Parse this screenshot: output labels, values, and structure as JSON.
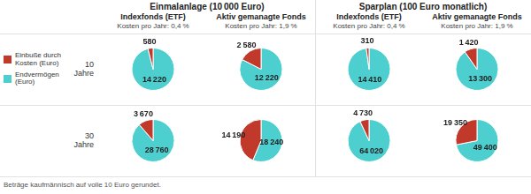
{
  "annotations": [
    "Einmalanlage (10 000 Euro)",
    "Sparplan (100 Euro monatlich)",
    "10\nJahre",
    "30\nJahre",
    "Beträge kaufmännisch auf volle 10 Euro gerundet."
  ],
  "chart_data": [
    {
      "type": "pie",
      "title": "Indexfonds (ETF)",
      "subtitle": "Kosten pro Jahr: 0,4 %",
      "categories": [
        "Endvermögen\n(Euro)",
        "Einbuße durch\nKosten (Euro)"
      ],
      "values": [
        14220,
        580
      ],
      "value_labels": [
        "14 220",
        "580"
      ],
      "colors": [
        "#4dcfcf",
        "#c0392b"
      ],
      "data_labels": true,
      "legend": "left"
    },
    {
      "type": "pie",
      "title": "Aktiv gemanagte Fonds",
      "subtitle": "Kosten pro Jahr: 1,9 %",
      "categories": [
        "Endvermögen\n(Euro)",
        "Einbuße durch\nKosten (Euro)"
      ],
      "values": [
        12220,
        2580
      ],
      "value_labels": [
        "12 220",
        "2 580"
      ],
      "colors": [
        "#4dcfcf",
        "#c0392b"
      ],
      "data_labels": true,
      "legend": "left"
    },
    {
      "type": "pie",
      "title": "Indexfonds (ETF)",
      "subtitle": "Kosten pro Jahr: 0,4 %",
      "categories": [
        "Endvermögen\n(Euro)",
        "Einbuße durch\nKosten (Euro)"
      ],
      "values": [
        14410,
        310
      ],
      "value_labels": [
        "14 410",
        "310"
      ],
      "colors": [
        "#4dcfcf",
        "#c0392b"
      ],
      "data_labels": true,
      "legend": "left"
    },
    {
      "type": "pie",
      "title": "Aktiv gemanagte Fonds",
      "subtitle": "Kosten pro Jahr: 1,9 %",
      "categories": [
        "Endvermögen\n(Euro)",
        "Einbuße durch\nKosten (Euro)"
      ],
      "values": [
        13300,
        1420
      ],
      "value_labels": [
        "13 300",
        "1 420"
      ],
      "colors": [
        "#4dcfcf",
        "#c0392b"
      ],
      "data_labels": true,
      "legend": "left"
    },
    {
      "type": "pie",
      "title": "Indexfonds (ETF)",
      "subtitle": "Kosten pro Jahr: 0,4 %",
      "categories": [
        "Endvermögen\n(Euro)",
        "Einbuße durch\nKosten (Euro)"
      ],
      "values": [
        28760,
        3670
      ],
      "value_labels": [
        "28 760",
        "3 670"
      ],
      "colors": [
        "#4dcfcf",
        "#c0392b"
      ],
      "data_labels": true,
      "legend": "left"
    },
    {
      "type": "pie",
      "title": "Aktiv gemanagte Fonds",
      "subtitle": "Kosten pro Jahr: 1,9 %",
      "categories": [
        "Endvermögen\n(Euro)",
        "Einbuße durch\nKosten (Euro)"
      ],
      "values": [
        18240,
        14190
      ],
      "value_labels": [
        "18 240",
        "14 190"
      ],
      "colors": [
        "#4dcfcf",
        "#c0392b"
      ],
      "data_labels": true,
      "legend": "left"
    },
    {
      "type": "pie",
      "title": "Indexfonds (ETF)",
      "subtitle": "Kosten pro Jahr: 0,4 %",
      "categories": [
        "Endvermögen\n(Euro)",
        "Einbuße durch\nKosten (Euro)"
      ],
      "values": [
        64020,
        4730
      ],
      "value_labels": [
        "64 020",
        "4 730"
      ],
      "colors": [
        "#4dcfcf",
        "#c0392b"
      ],
      "data_labels": true,
      "legend": "left"
    },
    {
      "type": "pie",
      "title": "Aktiv gemanagte Fonds",
      "subtitle": "Kosten pro Jahr: 1,9 %",
      "categories": [
        "Endvermögen\n(Euro)",
        "Einbuße durch\nKosten (Euro)"
      ],
      "values": [
        49400,
        19350
      ],
      "value_labels": [
        "49 400",
        "19 350"
      ],
      "colors": [
        "#4dcfcf",
        "#c0392b"
      ],
      "data_labels": true,
      "legend": "left"
    }
  ]
}
